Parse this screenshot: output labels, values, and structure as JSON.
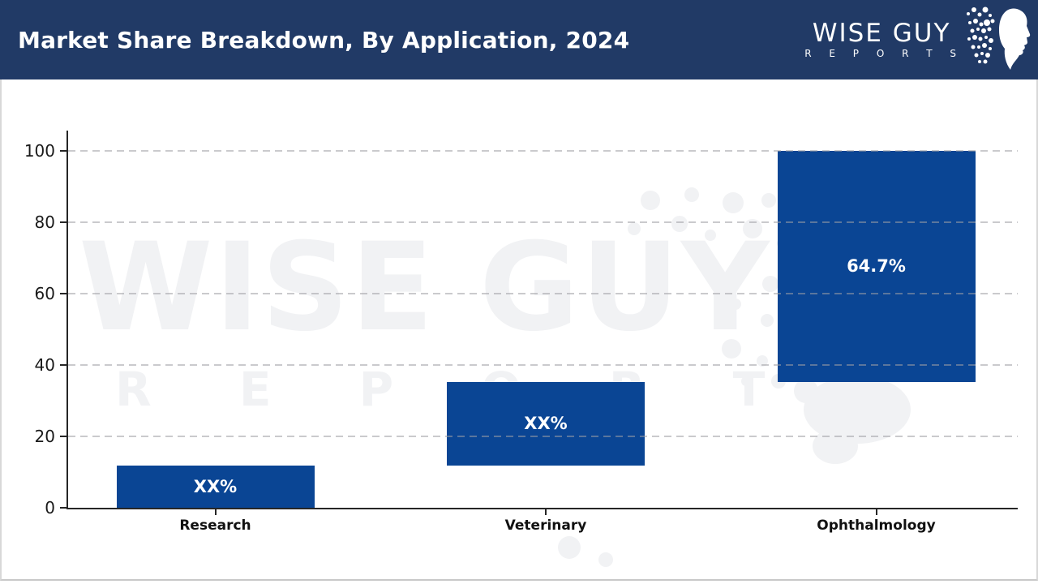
{
  "header": {
    "title": "Market Share Breakdown, By Application, 2024",
    "logo": {
      "line1": "WISE GUY",
      "line2": "R E P O R T S"
    }
  },
  "watermark": {
    "line1": "WISE GUY",
    "line2": "R E P O R T S"
  },
  "colors": {
    "header_bg": "#213A66",
    "bar_blue": "#0A4594",
    "axis": "#262626",
    "gridline": "#dedede",
    "watermark": "#f1f2f4",
    "bar_label_text": "#ffffff"
  },
  "chart_data": {
    "type": "bar",
    "subtype": "floating-waterfall",
    "title": "Market Share Breakdown, By Application, 2024",
    "categories": [
      "Research",
      "Veterinary",
      "Ophthalmology"
    ],
    "bars": [
      {
        "category": "Research",
        "start": 0,
        "end": 11.8,
        "label": "XX%"
      },
      {
        "category": "Veterinary",
        "start": 11.8,
        "end": 35.3,
        "label": "XX%"
      },
      {
        "category": "Ophthalmology",
        "start": 35.3,
        "end": 100,
        "label": "64.7%"
      }
    ],
    "xlabel": "",
    "ylabel": "",
    "ylim": [
      0,
      100
    ],
    "yticks": [
      0,
      20,
      40,
      60,
      80,
      100
    ],
    "grid": "horizontal-dashed, drawn over bars",
    "legend": "none",
    "bar_color": "#0A4594",
    "label_color": "#ffffff"
  }
}
